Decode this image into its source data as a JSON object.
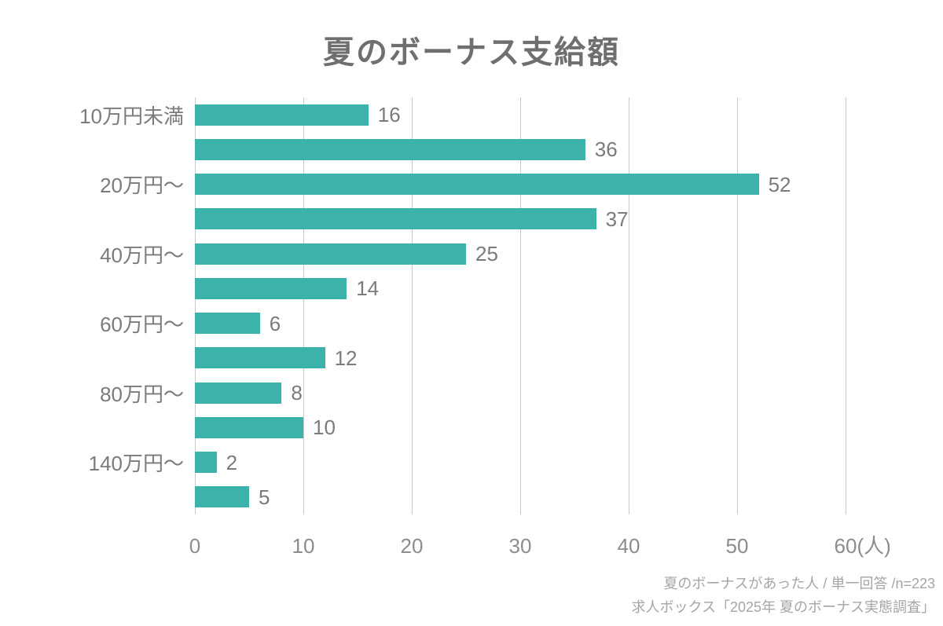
{
  "title": "夏のボーナス支給額",
  "chart_data": {
    "type": "bar",
    "orientation": "horizontal",
    "title": "夏のボーナス支給額",
    "categories": [
      "10万円未満",
      "",
      "20万円～",
      "",
      "40万円～",
      "",
      "60万円～",
      "",
      "80万円～",
      "",
      "140万円～",
      ""
    ],
    "values": [
      16,
      36,
      52,
      37,
      25,
      14,
      6,
      12,
      8,
      10,
      2,
      5
    ],
    "value_labels": [
      16,
      36,
      52,
      37,
      25,
      14,
      6,
      12,
      8,
      10,
      2,
      5
    ],
    "xlim": [
      0,
      60
    ],
    "x_ticks": [
      0,
      10,
      20,
      30,
      40,
      50,
      60
    ],
    "x_unit": "(人)",
    "grid": true,
    "legend_position": "none"
  },
  "colors": {
    "bar": "#3BB3AA",
    "grid": "#C9C9C9",
    "title_text": "#6F6F6F",
    "label_text": "#7B7B7B",
    "tick_text": "#8C8C8C",
    "footer_text": "#A5A5A5"
  },
  "footer": {
    "line1": "夏のボーナスがあった人 / 単一回答 /n=223",
    "line2": "求人ボックス「2025年 夏のボーナス実態調査」"
  }
}
